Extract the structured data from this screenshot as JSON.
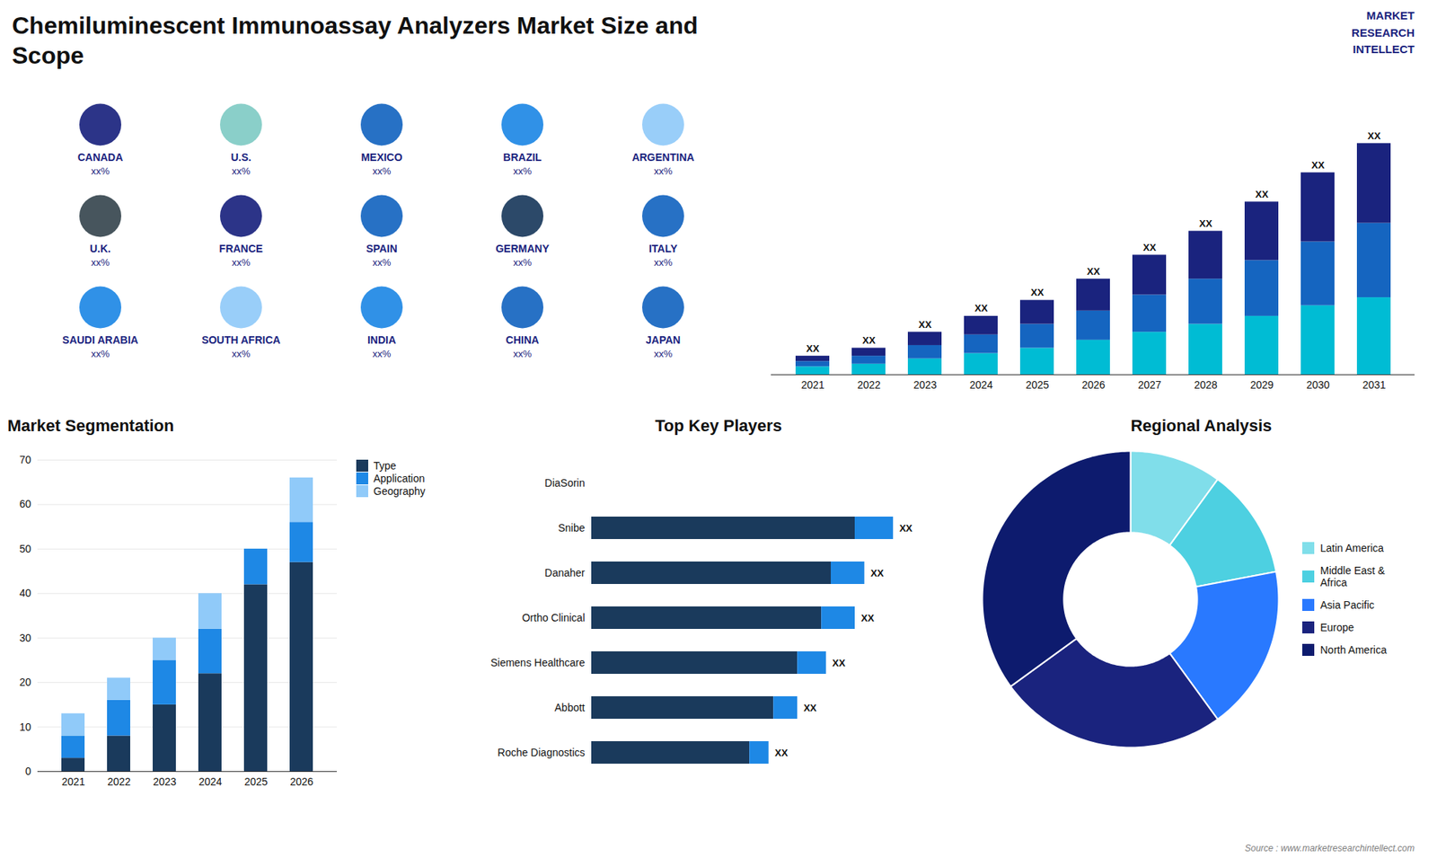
{
  "chart_data": [
    {
      "type": "map",
      "title": "Chemiluminescent Immunoassay Analyzers Market Size and\nScope",
      "categories": [
        "CANADA",
        "U.S.",
        "MEXICO",
        "BRAZIL",
        "ARGENTINA",
        "U.K.",
        "FRANCE",
        "SPAIN",
        "GERMANY",
        "ITALY",
        "SAUDI ARABIA",
        "SOUTH AFRICA",
        "INDIA",
        "CHINA",
        "JAPAN"
      ],
      "colors": [
        "#1a237e",
        "#80cbc4",
        "#1565c0",
        "#1e88e5",
        "#90caf9",
        "#37474f",
        "#1a237e",
        "#1565c0",
        "#1a3a5c",
        "#1565c0",
        "#1e88e5",
        "#90caf9",
        "#1e88e5",
        "#1565c0",
        "#1565c0"
      ],
      "annotations": [
        "xx%",
        "xx%",
        "xx%",
        "xx%",
        "xx%",
        "xx%",
        "xx%",
        "xx%",
        "xx%",
        "xx%",
        "xx%",
        "xx%",
        "xx%",
        "xx%",
        "xx%"
      ]
    },
    {
      "type": "bar",
      "stacked": true,
      "categories": [
        "2021",
        "2022",
        "2023",
        "2024",
        "2025",
        "2026",
        "2027",
        "2028",
        "2029",
        "2030",
        "2031"
      ],
      "series": [
        {
          "color": "#00bcd4",
          "values": [
            3,
            4,
            6,
            8,
            10,
            13,
            16,
            19,
            22,
            26,
            29
          ]
        },
        {
          "color": "#1565c0",
          "values": [
            2,
            3,
            5,
            7,
            9,
            11,
            14,
            17,
            21,
            24,
            28
          ]
        },
        {
          "color": "#1a237e",
          "values": [
            2,
            3,
            5,
            7,
            9,
            12,
            15,
            18,
            22,
            26,
            30
          ]
        }
      ],
      "ylim": [
        0,
        108.75
      ],
      "tick_labels": "x",
      "annotations": [
        "XX",
        "XX",
        "XX",
        "XX",
        "XX",
        "XX",
        "XX",
        "XX",
        "XX",
        "XX",
        "XX"
      ]
    },
    {
      "type": "bar",
      "stacked": true,
      "title": "Market Segmentation",
      "categories": [
        "2021",
        "2022",
        "2023",
        "2024",
        "2025",
        "2026"
      ],
      "series": [
        {
          "name": "Type",
          "color": "#1a3a5c",
          "values": [
            3,
            8,
            15,
            22,
            42,
            47
          ]
        },
        {
          "name": "Application",
          "color": "#1e88e5",
          "values": [
            5,
            8,
            10,
            10,
            8,
            9
          ]
        },
        {
          "name": "Geography",
          "color": "#90caf9",
          "values": [
            5,
            5,
            5,
            8,
            0,
            10
          ]
        }
      ],
      "ylim": [
        0,
        70
      ],
      "yticks": [
        0,
        10,
        20,
        30,
        40,
        50,
        60,
        70
      ],
      "grid": true,
      "legend": "right"
    },
    {
      "type": "bar",
      "orientation": "horizontal",
      "stacked": true,
      "title": "Top Key Players",
      "categories": [
        "DiaSorin",
        "Snibe",
        "Danaher",
        "Ortho Clinical",
        "Siemens Healthcare",
        "Abbott",
        "Roche Diagnostics"
      ],
      "series": [
        {
          "color": "#1a3a5c",
          "values": [
            0,
            55,
            50,
            48,
            43,
            38,
            33
          ]
        },
        {
          "color": "#1e88e5",
          "values": [
            0,
            8,
            7,
            7,
            6,
            5,
            4
          ]
        }
      ],
      "xlim": [
        0,
        75
      ],
      "tick_labels": "y",
      "annotations": [
        "XX",
        "XX",
        "XX",
        "XX",
        "XX",
        "XX"
      ]
    },
    {
      "type": "pie",
      "title": "Regional Analysis",
      "categories": [
        "Latin America",
        "Middle East &\nAfrica",
        "Asia Pacific",
        "Europe",
        "North America"
      ],
      "values": [
        10,
        12,
        18,
        25,
        35
      ],
      "colors": [
        "#80deea",
        "#4dd0e1",
        "#2979ff",
        "#1a237e",
        "#0d1b6e"
      ],
      "legend": "right"
    },
    {
      "type": "text",
      "annotations": [
        "MARKET",
        "RESEARCH",
        "INTELLECT",
        "Source : www.marketresearchintellect.com"
      ]
    }
  ]
}
